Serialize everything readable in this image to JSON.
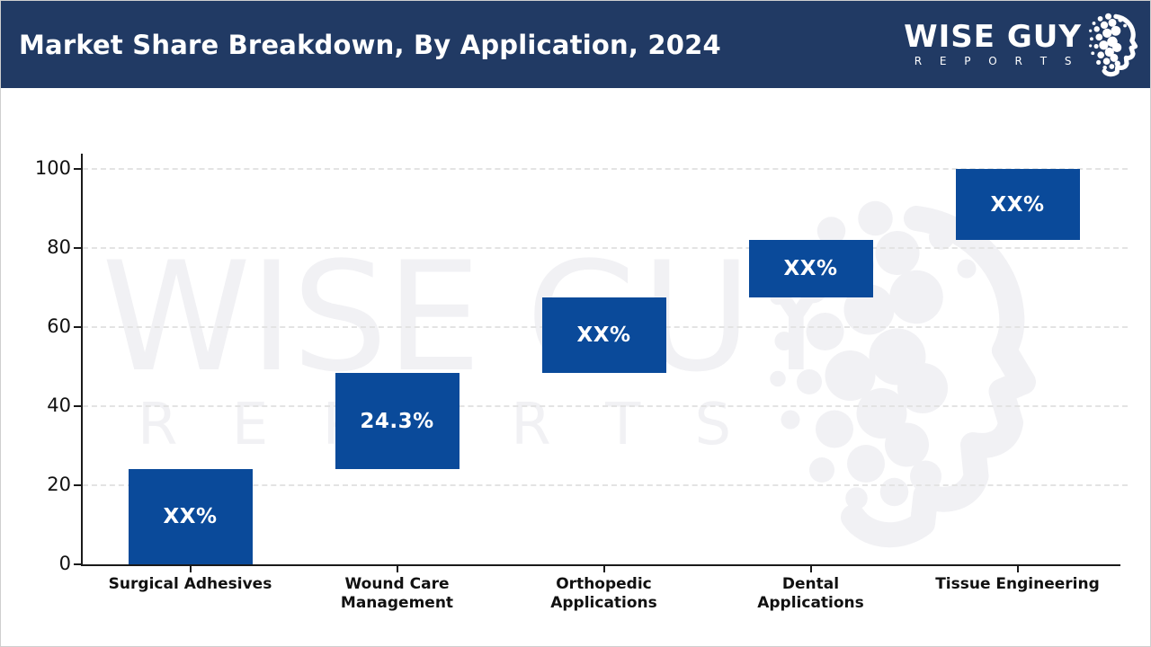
{
  "header": {
    "title": "Market Share Breakdown, By Application, 2024",
    "bg_color": "#213a64",
    "logo": {
      "line1": "WISE GUY",
      "line2": "R E P O R T S",
      "mark": "dotted-head-profile"
    }
  },
  "watermark": {
    "line1": "WISE GUY",
    "line2": "R E P O R T S",
    "mark": "dotted-head-profile",
    "color": "#f1f1f4"
  },
  "chart_data": {
    "type": "bar",
    "subtype": "waterfall-floating-bars",
    "title": "Market Share Breakdown, By Application, 2024",
    "categories": [
      "Surgical Adhesives",
      "Wound Care Management",
      "Orthopedic Applications",
      "Dental Applications",
      "Tissue Engineering"
    ],
    "segments": [
      {
        "category_lines": [
          "Surgical Adhesives"
        ],
        "start": 0,
        "end": 24,
        "label": "XX%"
      },
      {
        "category_lines": [
          "Wound Care",
          "Management"
        ],
        "start": 24,
        "end": 48.3,
        "label": "24.3%"
      },
      {
        "category_lines": [
          "Orthopedic",
          "Applications"
        ],
        "start": 48.3,
        "end": 67.5,
        "label": "XX%"
      },
      {
        "category_lines": [
          "Dental",
          "Applications"
        ],
        "start": 67.5,
        "end": 82,
        "label": "XX%"
      },
      {
        "category_lines": [
          "Tissue Engineering"
        ],
        "start": 82,
        "end": 100,
        "label": "XX%"
      }
    ],
    "xlabel": "",
    "ylabel": "",
    "ylim": [
      0,
      100
    ],
    "yticks": [
      0,
      20,
      40,
      60,
      80,
      100
    ],
    "grid": "dashed-horizontal",
    "legend": "none",
    "bar_color": "#0a4a9a",
    "bar_label_color": "#ffffff",
    "axis_color": "#1a1a1a"
  }
}
